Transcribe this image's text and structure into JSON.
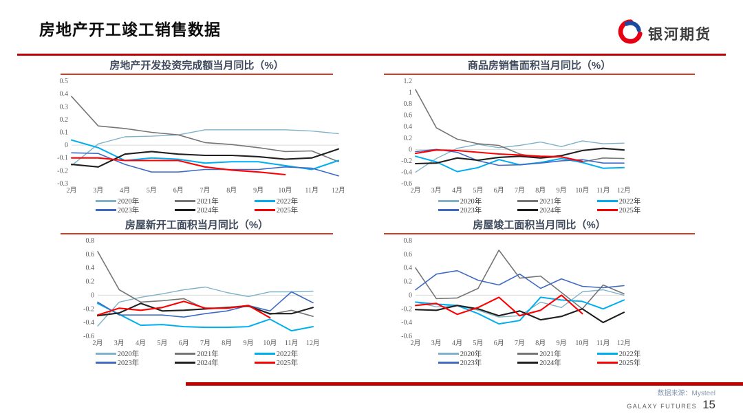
{
  "page": {
    "title": "房地产开工竣工销售数据",
    "logo_text": "银河期货",
    "accent_red": "#c00000",
    "footer": {
      "source": "数据来源：Mysteel",
      "brand": "GALAXY FUTURES",
      "page_number": "15"
    }
  },
  "chart_data": [
    {
      "type": "line",
      "title": "房地产开发投资完成额当月同比（%）",
      "categories": [
        "2月",
        "3月",
        "4月",
        "5月",
        "6月",
        "7月",
        "8月",
        "9月",
        "10月",
        "11月",
        "12月"
      ],
      "ylim": [
        -0.3,
        0.5
      ],
      "yticks": [
        0.5,
        0.4,
        0.3,
        0.2,
        0.1,
        0,
        -0.1,
        -0.2,
        -0.3
      ],
      "grid": false,
      "legend_position": "bottom",
      "series": [
        {
          "name": "2020年",
          "color": "#7fb2c8",
          "width": 1.4,
          "values": [
            -0.16,
            0.01,
            0.065,
            0.07,
            0.08,
            0.12,
            0.12,
            0.12,
            0.12,
            0.11,
            0.09
          ]
        },
        {
          "name": "2021年",
          "color": "#757575",
          "width": 1.6,
          "values": [
            0.38,
            0.15,
            0.13,
            0.1,
            0.08,
            0.02,
            0.005,
            -0.02,
            -0.05,
            -0.045,
            -0.13
          ]
        },
        {
          "name": "2022年",
          "color": "#00aeef",
          "width": 2,
          "values": [
            0.04,
            -0.02,
            -0.12,
            -0.1,
            -0.11,
            -0.14,
            -0.13,
            -0.13,
            -0.16,
            -0.19,
            -0.12
          ]
        },
        {
          "name": "2023年",
          "color": "#3f6ac4",
          "width": 1.6,
          "values": [
            -0.06,
            -0.065,
            -0.15,
            -0.21,
            -0.21,
            -0.19,
            -0.19,
            -0.19,
            -0.17,
            -0.18,
            -0.24
          ]
        },
        {
          "name": "2024年",
          "color": "#1f1f1f",
          "width": 2.1,
          "values": [
            -0.15,
            -0.17,
            -0.07,
            -0.05,
            -0.07,
            -0.08,
            -0.08,
            -0.09,
            -0.11,
            -0.1,
            -0.03
          ]
        },
        {
          "name": "2025年",
          "color": "#fe0000",
          "width": 2.1,
          "values": [
            -0.1,
            -0.1,
            -0.12,
            -0.12,
            -0.12,
            -0.17,
            -0.195,
            -0.21,
            -0.23,
            null,
            null
          ]
        }
      ]
    },
    {
      "type": "line",
      "title": "商品房销售面积当月同比（%）",
      "categories": [
        "2月",
        "3月",
        "4月",
        "5月",
        "6月",
        "7月",
        "8月",
        "9月",
        "10月",
        "11月",
        "12月"
      ],
      "ylim": [
        -0.6,
        1.2
      ],
      "yticks": [
        1.2,
        1,
        0.8,
        0.6,
        0.4,
        0.2,
        0,
        -0.2,
        -0.4,
        -0.6
      ],
      "grid": false,
      "legend_position": "bottom",
      "series": [
        {
          "name": "2020年",
          "color": "#7fb2c8",
          "width": 1.4,
          "values": [
            -0.4,
            -0.16,
            0.02,
            0.09,
            0.03,
            0.07,
            0.13,
            0.05,
            0.15,
            0.1,
            0.11
          ]
        },
        {
          "name": "2021年",
          "color": "#757575",
          "width": 1.6,
          "values": [
            1.05,
            0.38,
            0.18,
            0.1,
            0.07,
            -0.08,
            -0.15,
            -0.13,
            -0.22,
            -0.15,
            -0.16
          ]
        },
        {
          "name": "2022年",
          "color": "#00aeef",
          "width": 2,
          "values": [
            -0.12,
            -0.22,
            -0.39,
            -0.32,
            -0.18,
            -0.27,
            -0.23,
            -0.16,
            -0.23,
            -0.33,
            -0.32
          ]
        },
        {
          "name": "2023年",
          "color": "#3f6ac4",
          "width": 1.6,
          "values": [
            -0.04,
            0.0,
            -0.05,
            -0.2,
            -0.28,
            -0.27,
            -0.24,
            -0.2,
            -0.18,
            -0.24,
            -0.24
          ]
        },
        {
          "name": "2024年",
          "color": "#1f1f1f",
          "width": 2.1,
          "values": [
            -0.25,
            -0.24,
            -0.15,
            -0.19,
            -0.14,
            -0.12,
            -0.15,
            -0.11,
            -0.02,
            0.02,
            -0.01
          ]
        },
        {
          "name": "2025年",
          "color": "#fe0000",
          "width": 2.1,
          "values": [
            -0.07,
            -0.01,
            -0.02,
            -0.05,
            -0.08,
            -0.1,
            -0.12,
            -0.13,
            -0.21,
            null,
            null
          ]
        }
      ]
    },
    {
      "type": "line",
      "title": "房屋新开工面积当月同比（%）",
      "categories": [
        "2月",
        "3月",
        "4月",
        "5月",
        "6月",
        "7月",
        "8月",
        "9月",
        "10月",
        "11月",
        "12月"
      ],
      "ylim": [
        -0.6,
        0.8
      ],
      "yticks": [
        0.8,
        0.6,
        0.4,
        0.2,
        0,
        -0.2,
        -0.4,
        -0.6
      ],
      "grid": false,
      "legend_position": "bottom",
      "series": [
        {
          "name": "2020年",
          "color": "#7fb2c8",
          "width": 1.4,
          "values": [
            -0.45,
            -0.1,
            -0.03,
            0.02,
            0.08,
            0.12,
            0.04,
            -0.02,
            0.05,
            0.05,
            0.06
          ]
        },
        {
          "name": "2021年",
          "color": "#757575",
          "width": 1.6,
          "values": [
            0.64,
            0.08,
            -0.1,
            -0.08,
            -0.05,
            -0.2,
            -0.18,
            -0.15,
            -0.28,
            -0.22,
            -0.31
          ]
        },
        {
          "name": "2022年",
          "color": "#00aeef",
          "width": 2,
          "values": [
            -0.12,
            -0.28,
            -0.44,
            -0.43,
            -0.46,
            -0.47,
            -0.47,
            -0.46,
            -0.35,
            -0.52,
            -0.46
          ]
        },
        {
          "name": "2023年",
          "color": "#3f6ac4",
          "width": 1.6,
          "values": [
            -0.1,
            -0.29,
            -0.29,
            -0.29,
            -0.32,
            -0.27,
            -0.23,
            -0.15,
            -0.23,
            0.05,
            -0.11
          ]
        },
        {
          "name": "2024年",
          "color": "#1f1f1f",
          "width": 2.1,
          "values": [
            -0.3,
            -0.26,
            -0.12,
            -0.23,
            -0.22,
            -0.2,
            -0.18,
            -0.16,
            -0.27,
            -0.27,
            -0.18
          ]
        },
        {
          "name": "2025年",
          "color": "#fe0000",
          "width": 2.1,
          "values": [
            -0.29,
            -0.19,
            -0.22,
            -0.18,
            -0.09,
            -0.19,
            -0.19,
            -0.15,
            -0.33,
            null,
            null
          ]
        }
      ]
    },
    {
      "type": "line",
      "title": "房屋竣工面积当月同比（%）",
      "categories": [
        "2月",
        "3月",
        "4月",
        "5月",
        "6月",
        "7月",
        "8月",
        "9月",
        "10月",
        "11月",
        "12月"
      ],
      "ylim": [
        -0.6,
        0.8
      ],
      "yticks": [
        0.8,
        0.6,
        0.4,
        0.2,
        0,
        -0.2,
        -0.4,
        -0.6
      ],
      "grid": false,
      "legend_position": "bottom",
      "series": [
        {
          "name": "2020年",
          "color": "#7fb2c8",
          "width": 1.4,
          "values": [
            -0.1,
            -0.17,
            -0.15,
            -0.22,
            -0.32,
            -0.3,
            -0.1,
            -0.18,
            0.05,
            0.08,
            0.0
          ]
        },
        {
          "name": "2021年",
          "color": "#757575",
          "width": 1.6,
          "values": [
            0.4,
            -0.05,
            -0.04,
            0.1,
            0.66,
            0.25,
            0.28,
            0.04,
            -0.2,
            0.15,
            0.02
          ]
        },
        {
          "name": "2022年",
          "color": "#00aeef",
          "width": 2,
          "values": [
            -0.1,
            -0.13,
            -0.15,
            -0.27,
            -0.42,
            -0.37,
            -0.03,
            -0.07,
            -0.09,
            -0.2,
            -0.07
          ]
        },
        {
          "name": "2023年",
          "color": "#3f6ac4",
          "width": 1.6,
          "values": [
            0.08,
            0.31,
            0.36,
            0.22,
            0.15,
            0.31,
            0.1,
            0.24,
            0.13,
            0.11,
            0.14
          ]
        },
        {
          "name": "2024年",
          "color": "#1f1f1f",
          "width": 2.1,
          "values": [
            -0.21,
            -0.22,
            -0.15,
            -0.2,
            -0.3,
            -0.23,
            -0.36,
            -0.31,
            -0.2,
            -0.4,
            -0.25
          ]
        },
        {
          "name": "2025年",
          "color": "#fe0000",
          "width": 2.1,
          "values": [
            -0.15,
            -0.12,
            -0.28,
            -0.18,
            -0.03,
            -0.3,
            -0.22,
            0.0,
            -0.27,
            null,
            null
          ]
        }
      ]
    }
  ]
}
